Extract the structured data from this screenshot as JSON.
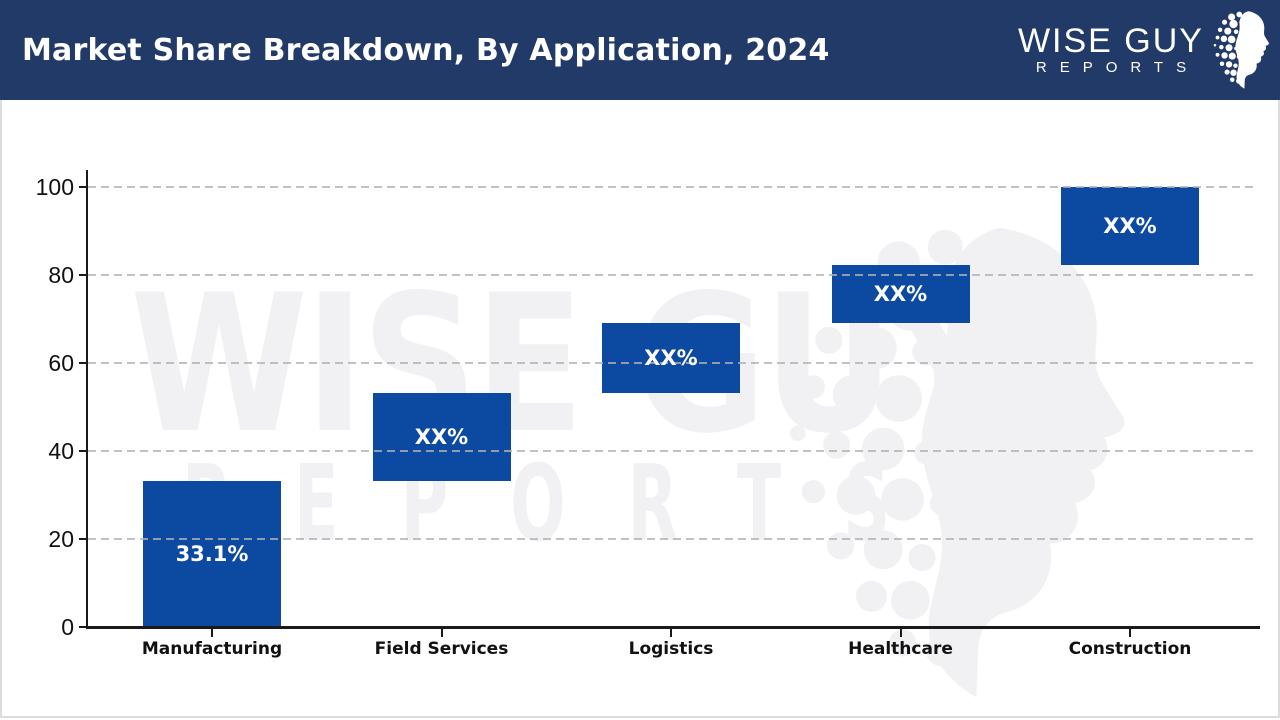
{
  "header": {
    "title": "Market Share Breakdown, By Application, 2024",
    "brand": {
      "name": "WISE GUY",
      "sub": "REPORTS"
    }
  },
  "watermark": {
    "name": "WISE GUY",
    "sub": "REPORTS"
  },
  "chart_data": {
    "type": "bar",
    "variant": "floating-waterfall",
    "title": "Market Share Breakdown, By Application, 2024",
    "categories": [
      "Manufacturing",
      "Field Services",
      "Logistics",
      "Healthcare",
      "Construction"
    ],
    "segments": [
      {
        "category": "Manufacturing",
        "start": 0,
        "end": 33.1,
        "value": 33.1,
        "label": "33.1%"
      },
      {
        "category": "Field Services",
        "start": 33.1,
        "end": 53.2,
        "value": 20.1,
        "label": "XX%"
      },
      {
        "category": "Logistics",
        "start": 53.2,
        "end": 69.1,
        "value": 15.9,
        "label": "XX%"
      },
      {
        "category": "Healthcare",
        "start": 69.1,
        "end": 82.2,
        "value": 13.1,
        "label": "XX%"
      },
      {
        "category": "Construction",
        "start": 82.2,
        "end": 100,
        "value": 17.8,
        "label": "XX%"
      }
    ],
    "xlabel": "",
    "ylabel": "",
    "ylim": [
      0,
      100
    ],
    "yticks": [
      0,
      20,
      40,
      60,
      80,
      100
    ],
    "grid": "horizontal-dashed",
    "legend": null,
    "bar_color": "#0c4aa2",
    "bar_label_color": "#ffffff"
  },
  "colors": {
    "header_bg": "#223a67",
    "bar": "#0c4aa2",
    "axis": "#1a1a1a",
    "grid": "#b2b2b2",
    "watermark": "#f1f1f4",
    "page_border": "#dcdcdc",
    "title_text": "#ffffff"
  }
}
